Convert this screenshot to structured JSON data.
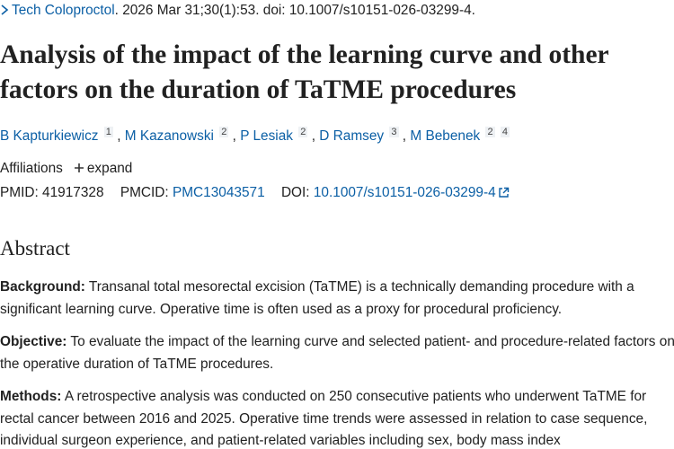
{
  "citation": {
    "journal": "Tech Coloproctol",
    "details": ". 2026 Mar 31;30(1):53. doi: 10.1007/s10151-026-03299-4."
  },
  "title": "Analysis of the impact of the learning curve and other factors on the duration of TaTME procedures",
  "authors": [
    {
      "name": "B Kapturkiewicz",
      "affiliations": [
        "1"
      ]
    },
    {
      "name": "M Kazanowski",
      "affiliations": [
        "2"
      ]
    },
    {
      "name": "P Lesiak",
      "affiliations": [
        "2"
      ]
    },
    {
      "name": "D Ramsey",
      "affiliations": [
        "3"
      ]
    },
    {
      "name": "M Bebenek",
      "affiliations": [
        "2",
        "4"
      ]
    }
  ],
  "affiliations": {
    "label": "Affiliations",
    "toggle": "expand"
  },
  "identifiers": {
    "pmid_label": "PMID:",
    "pmid": "41917328",
    "pmcid_label": "PMCID:",
    "pmcid": "PMC13043571",
    "doi_label": "DOI:",
    "doi": "10.1007/s10151-026-03299-4"
  },
  "abstract": {
    "heading": "Abstract",
    "sections": [
      {
        "label": "Background:",
        "text": "Transanal total mesorectal excision (TaTME) is a technically demanding procedure with a significant learning curve. Operative time is often used as a proxy for procedural proficiency."
      },
      {
        "label": "Objective:",
        "text": "To evaluate the impact of the learning curve and selected patient- and procedure-related factors on the operative duration of TaTME procedures."
      },
      {
        "label": "Methods:",
        "text": "A retrospective analysis was conducted on 250 consecutive patients who underwent TaTME for rectal cancer between 2016 and 2025. Operative time trends were assessed in relation to case sequence, individual surgeon experience, and patient-related variables including sex, body mass index"
      }
    ]
  }
}
